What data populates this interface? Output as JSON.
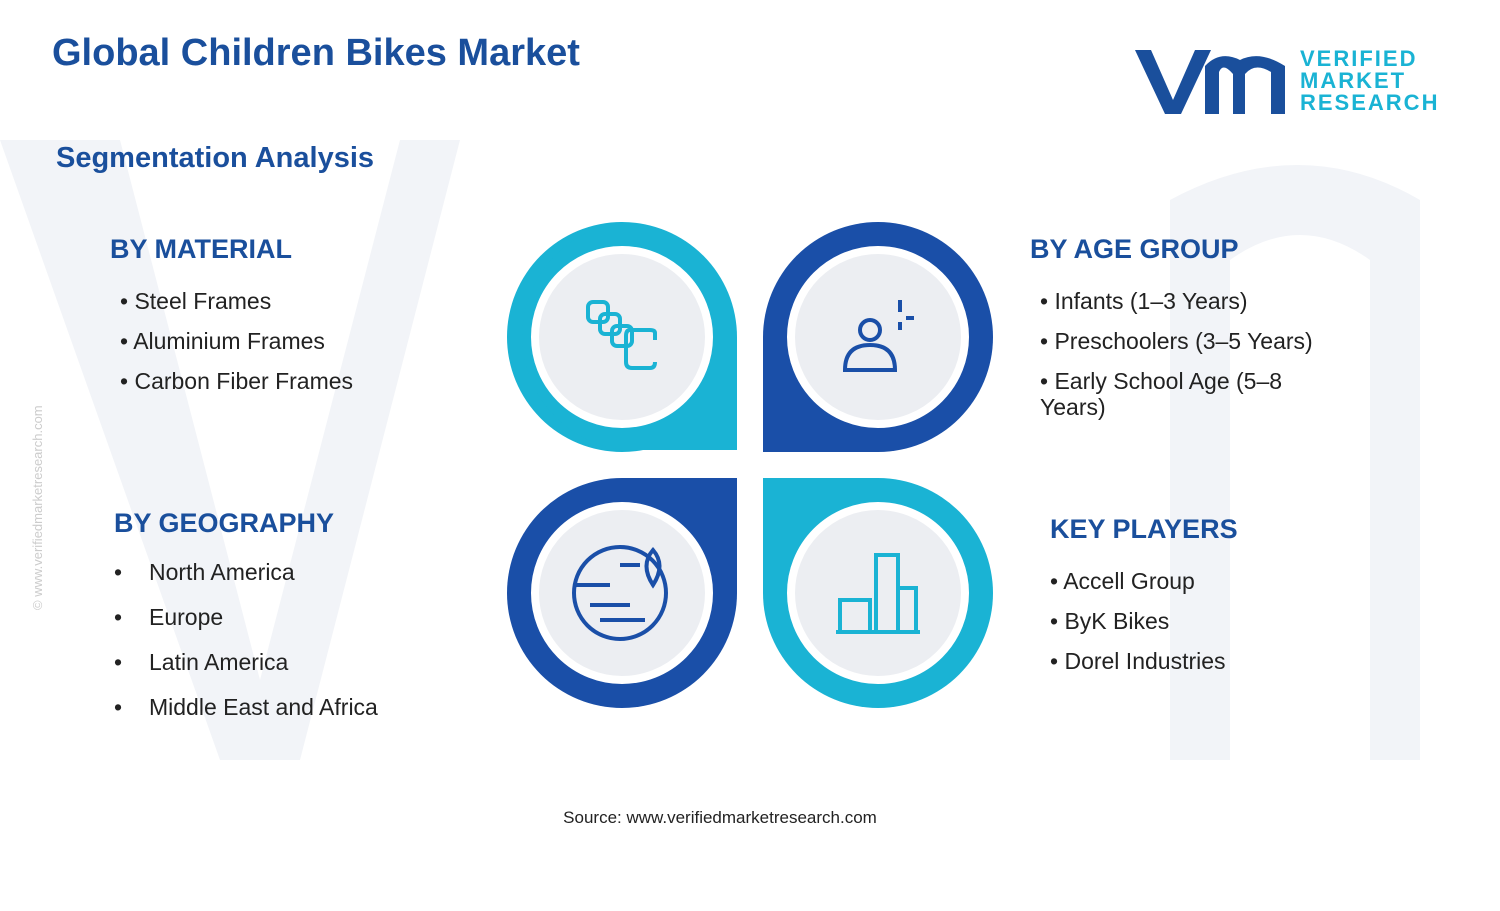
{
  "header": {
    "title": "Global Children Bikes Market",
    "subtitle": "Segmentation Analysis",
    "logo": [
      "VERIFIED",
      "MARKET",
      "RESEARCH"
    ],
    "watermark": "© www.verifiedmarketresearch.com"
  },
  "segments": [
    {
      "heading": "BY MATERIAL",
      "items": [
        "Steel Frames",
        "Aluminium Frames",
        "Carbon Fiber Frames"
      ]
    },
    {
      "heading": "BY AGE GROUP",
      "items": [
        "Infants (1–3 Years)",
        "Preschoolers (3–5 Years)",
        "Early School Age (5–8 Years)"
      ]
    },
    {
      "heading": "BY GEOGRAPHY",
      "items": [
        "North America",
        "Europe",
        "Latin America",
        "Middle East and Africa"
      ]
    },
    {
      "heading": "KEY PLAYERS",
      "items": [
        "Accell Group",
        "ByK Bikes",
        "Dorel Industries"
      ]
    }
  ],
  "footer": {
    "source": "Source: www.verifiedmarketresearch.com"
  }
}
